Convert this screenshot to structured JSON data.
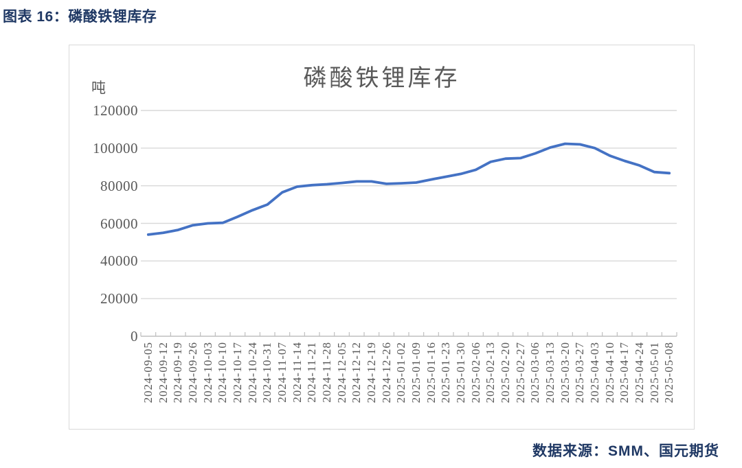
{
  "page": {
    "figure_label": "图表 16：磷酸铁锂库存",
    "source_note": "数据来源：SMM、国元期货"
  },
  "colors": {
    "heading_navy": "#1F3864",
    "line_blue": "#4472C4",
    "axis_text_gray": "#595959",
    "gridline_gray": "#D9D9D9",
    "axis_line_gray": "#BFBFBF"
  },
  "chart_data": {
    "type": "line",
    "title": "磷酸铁锂库存",
    "unit_label": "吨",
    "ylabel": "吨",
    "ylim": [
      0,
      120000
    ],
    "yticks": [
      0,
      20000,
      40000,
      60000,
      80000,
      100000,
      120000
    ],
    "grid": true,
    "legend_position": "none",
    "line_color": "#4472C4",
    "categories": [
      "2024-09-05",
      "2024-09-12",
      "2024-09-19",
      "2024-09-26",
      "2024-10-03",
      "2024-10-10",
      "2024-10-17",
      "2024-10-24",
      "2024-10-31",
      "2024-11-07",
      "2024-11-14",
      "2024-11-21",
      "2024-11-28",
      "2024-12-05",
      "2024-12-12",
      "2024-12-19",
      "2024-12-26",
      "2025-01-02",
      "2025-01-09",
      "2025-01-16",
      "2025-01-23",
      "2025-01-30",
      "2025-02-06",
      "2025-02-13",
      "2025-02-20",
      "2025-02-27",
      "2025-03-06",
      "2025-03-13",
      "2025-03-20",
      "2025-03-27",
      "2025-04-03",
      "2025-04-10",
      "2025-04-17",
      "2025-04-24",
      "2025-05-01",
      "2025-05-08"
    ],
    "series": [
      {
        "name": "磷酸铁锂库存",
        "values": [
          54000,
          55000,
          56500,
          59000,
          60000,
          60300,
          63500,
          67000,
          70000,
          76500,
          79500,
          80300,
          80800,
          81500,
          82300,
          82300,
          81000,
          81300,
          81700,
          83300,
          84800,
          86300,
          88500,
          92700,
          94400,
          94700,
          97200,
          100300,
          102300,
          102000,
          100000,
          96000,
          93200,
          90800,
          87300,
          86700
        ]
      }
    ]
  }
}
